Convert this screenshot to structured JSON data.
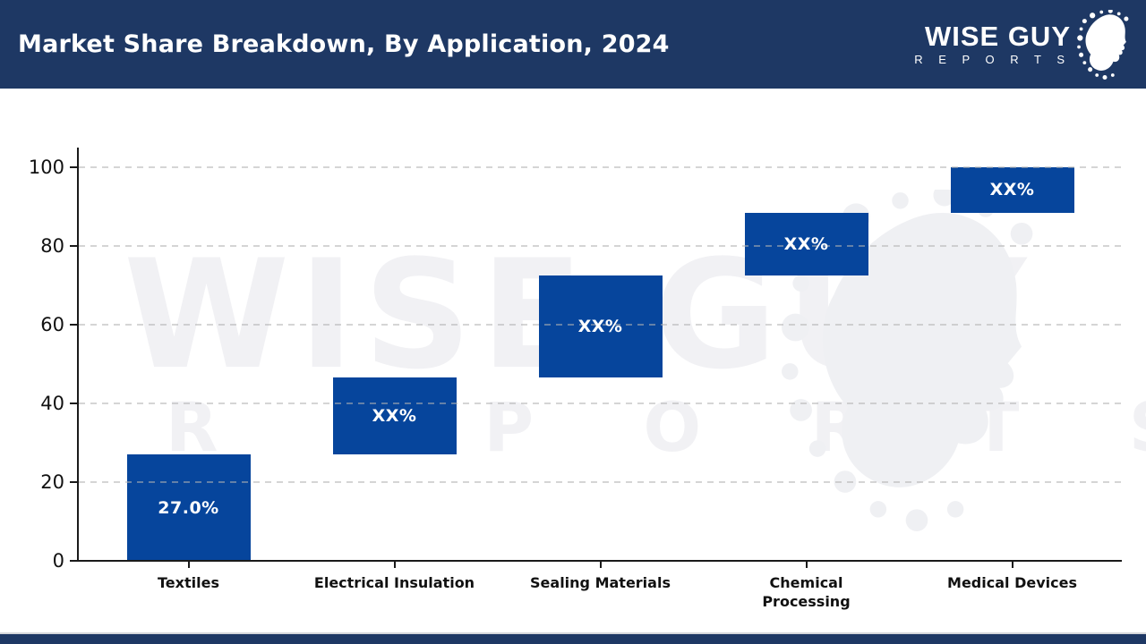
{
  "header": {
    "title": "Market Share Breakdown, By Application, 2024",
    "brand": {
      "line1": "WISE GUY",
      "line2": "R E P O R T S"
    }
  },
  "watermark": {
    "line1": "WISE GUY",
    "line2": "R E P O R T S"
  },
  "colors": {
    "navy": "#1e3864",
    "bar_blue": "#06459c",
    "watermark_gray": "#f1f1f4",
    "axis_black": "#1a1a1a",
    "grid_gray": "#d9d9d9",
    "label_white": "#ffffff"
  },
  "chart_data": {
    "type": "bar",
    "subtype": "waterfall",
    "title": "Market Share Breakdown, By Application, 2024",
    "categories": [
      "Textiles",
      "Electrical Insulation",
      "Sealing Materials",
      "Chemical Processing",
      "Medical Devices"
    ],
    "segments": [
      {
        "category": "Textiles",
        "start": 0,
        "end": 27,
        "label": "27.0%"
      },
      {
        "category": "Electrical Insulation",
        "start": 27,
        "end": 46.5,
        "label": "XX%"
      },
      {
        "category": "Sealing Materials",
        "start": 46.5,
        "end": 72.5,
        "label": "XX%"
      },
      {
        "category": "Chemical Processing",
        "start": 72.5,
        "end": 88.5,
        "label": "XX%"
      },
      {
        "category": "Medical Devices",
        "start": 88.5,
        "end": 100,
        "label": "XX%"
      }
    ],
    "yticks": [
      0,
      20,
      40,
      60,
      80,
      100
    ],
    "ylim": [
      0,
      105
    ],
    "xlabel": "",
    "ylabel": "",
    "grid": "horizontal dashed",
    "legend": "none",
    "bar_color": "#06459c"
  }
}
